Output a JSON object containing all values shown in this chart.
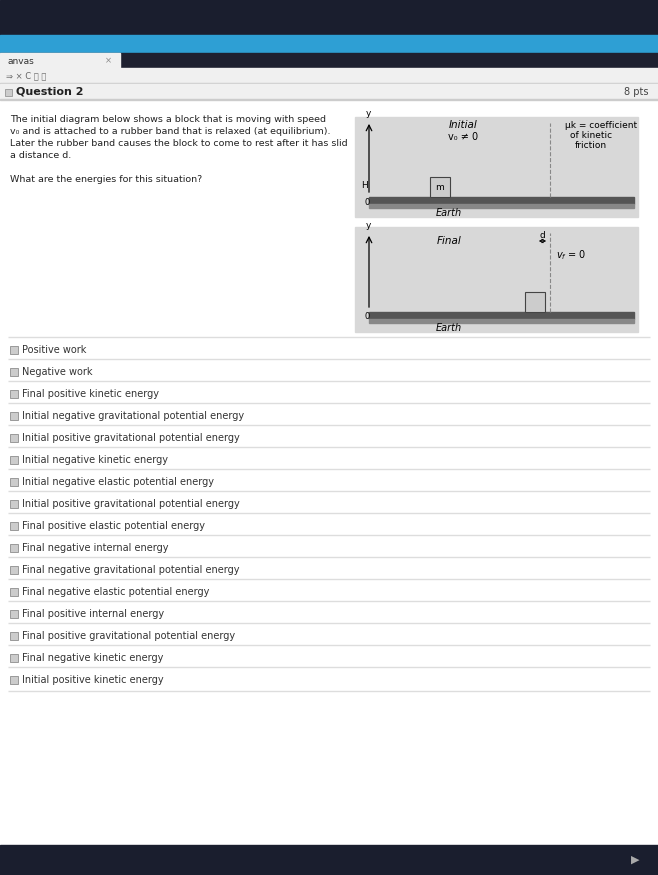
{
  "bg_top_dark": "#1a1e2e",
  "bg_blue_bar": "#2e9fd4",
  "bg_tab_dark": "#1e2030",
  "bg_content": "#f0f0f0",
  "bg_white": "#ffffff",
  "tab_text": "anvas",
  "nav_text": "⇒ × C ⓘ 🔒",
  "question_text": "Question 2",
  "pts_text": "8 pts",
  "body_text_lines": [
    "The initial diagram below shows a block that is moving with speed",
    "v₀ and is attached to a rubber band that is relaxed (at equilibrium).",
    "Later the rubber band causes the block to come to rest after it has slid",
    "a distance d.",
    "",
    "What are the energies for this situation?"
  ],
  "initial_label": "Initial",
  "initial_v": "v₀ ≠ 0",
  "final_label": "Final",
  "final_v": "v_f = 0",
  "final_d": "d",
  "H_label": "H",
  "m_label": "m",
  "earth_label": "Earth",
  "muk_line1": "μk = coefficient",
  "muk_line2": "of kinetic",
  "muk_line3": "friction",
  "checkbox_items": [
    "Positive work",
    "Negative work",
    "Final positive kinetic energy",
    "Initial negative gravitational potential energy",
    "Initial positive gravitational potential energy",
    "Initial negative kinetic energy",
    "Initial negative elastic potential energy",
    "Initial positive gravitational potential energy",
    "Final positive elastic potential energy",
    "Final negative internal energy",
    "Final negative gravitational potential energy",
    "Final negative elastic potential energy",
    "Final positive internal energy",
    "Final positive gravitational potential energy",
    "Final negative kinetic energy",
    "Initial positive kinetic energy"
  ],
  "diag_bg": "#d8d8d8",
  "platform_dark": "#555555",
  "platform_mid": "#888888",
  "platform_light": "#aaaaaa",
  "block_fill": "#cccccc",
  "bottom_bar_color": "#1a1e2e"
}
